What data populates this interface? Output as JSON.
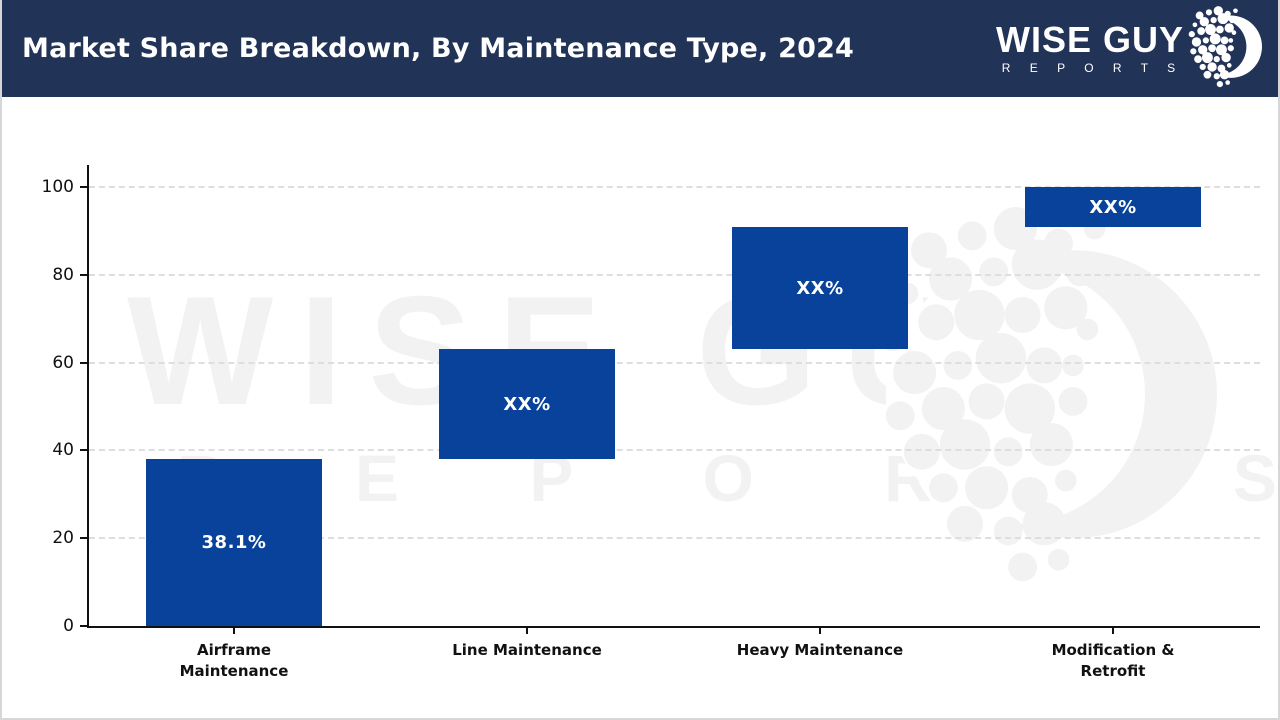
{
  "header": {
    "title": "Market Share Breakdown, By Maintenance Type, 2024",
    "logo": {
      "brand": "WISE GUY",
      "sub": "R E P O R T S"
    }
  },
  "watermark": {
    "brand": "WISE GUY",
    "sub": "R E P O R T S"
  },
  "colors": {
    "header_bg": "#213356",
    "bar_blue": "#09429b",
    "grid": "#dedede",
    "watermark": "#f2f2f2",
    "bar_label": "#ffffff"
  },
  "chart_data": {
    "type": "bar",
    "subtype": "waterfall",
    "title": "Market Share Breakdown, By Maintenance Type, 2024",
    "xlabel": "",
    "ylabel": "",
    "categories": [
      "Airframe\nMaintenance",
      "Line Maintenance",
      "Heavy Maintenance",
      "Modification &\nRetrofit"
    ],
    "segments": [
      {
        "category": "Airframe Maintenance",
        "start": 0,
        "end": 38.1,
        "label": "38.1%"
      },
      {
        "category": "Line Maintenance",
        "start": 38.1,
        "end": 63.1,
        "label": "XX%"
      },
      {
        "category": "Heavy Maintenance",
        "start": 63.1,
        "end": 90.9,
        "label": "XX%"
      },
      {
        "category": "Modification & Retrofit",
        "start": 90.9,
        "end": 100,
        "label": "XX%"
      }
    ],
    "yticks": [
      0,
      20,
      40,
      60,
      80,
      100
    ],
    "ylim": [
      0,
      105
    ],
    "grid": "horizontal-dashed",
    "legend": "none"
  }
}
